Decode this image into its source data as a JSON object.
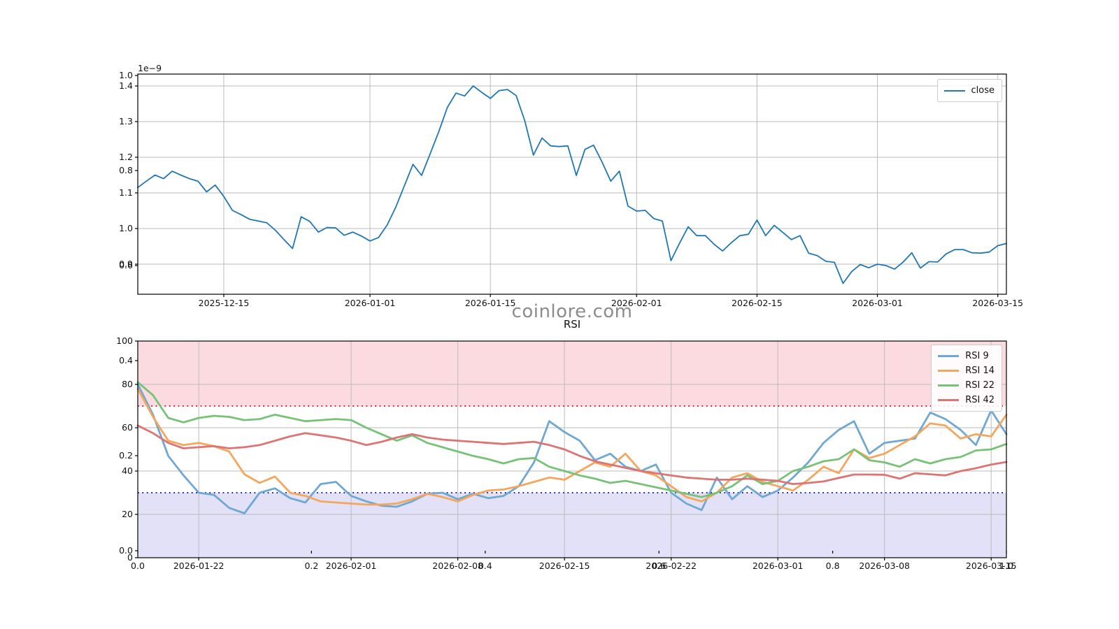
{
  "watermark": "coinlore.com",
  "colors": {
    "close": "#1f77b4",
    "rsi9": "#6fa8d2",
    "rsi14": "#f4a65c",
    "rsi22": "#77c277",
    "rsi42": "#dd7474",
    "overbought_band": "#fbdbe0",
    "oversold_band": "#e2e1f7",
    "overbought_line": "#dd0000",
    "oversold_line": "#0000cc",
    "grid": "#bbbbbb",
    "spine": "#000000"
  },
  "overlay_axis": {
    "note": "artifact figure-level axis 0-1 overlapping both charts",
    "yticks": [
      "1.0",
      "0.8",
      "0.6",
      "0.4",
      "0.2",
      "0.0"
    ],
    "xticks": [
      "0.0",
      "0.2",
      "0.4",
      "0.6",
      "0.8",
      "1.0"
    ]
  },
  "chart_data": [
    {
      "type": "line",
      "title": "",
      "x_start": "2025-12-05",
      "x_freq": "daily",
      "y_offset_label": "1e−9",
      "ylim_approx": [
        0.82,
        1.433
      ],
      "grid": true,
      "legend_position": "upper right",
      "yticks": [
        {
          "v": 1.4,
          "label": "1.4"
        },
        {
          "v": 1.3,
          "label": "1.3"
        },
        {
          "v": 1.2,
          "label": "1.2"
        },
        {
          "v": 1.1,
          "label": "1.1"
        },
        {
          "v": 1.0,
          "label": "1.0"
        },
        {
          "v": 0.9,
          "label": "0.9"
        }
      ],
      "xticks": [
        {
          "day": 10,
          "label": "2025-12-15"
        },
        {
          "day": 27,
          "label": "2026-01-01"
        },
        {
          "day": 41,
          "label": "2026-01-15"
        },
        {
          "day": 58,
          "label": "2026-02-01"
        },
        {
          "day": 72,
          "label": "2026-02-15"
        },
        {
          "day": 86,
          "label": "2026-03-01"
        },
        {
          "day": 100,
          "label": "2026-03-15"
        }
      ],
      "series": [
        {
          "name": "close",
          "color": "#1f77b4",
          "width": 1.8,
          "values": [
            1.115,
            1.133,
            1.15,
            1.14,
            1.161,
            1.15,
            1.14,
            1.133,
            1.103,
            1.122,
            1.09,
            1.051,
            1.039,
            1.026,
            1.021,
            1.016,
            0.995,
            0.969,
            0.944,
            1.033,
            1.02,
            0.99,
            1.003,
            1.002,
            0.981,
            0.99,
            0.979,
            0.965,
            0.975,
            1.01,
            1.06,
            1.12,
            1.18,
            1.149,
            1.21,
            1.272,
            1.34,
            1.38,
            1.372,
            1.4,
            1.382,
            1.365,
            1.387,
            1.39,
            1.373,
            1.302,
            1.206,
            1.254,
            1.232,
            1.23,
            1.232,
            1.149,
            1.222,
            1.234,
            1.186,
            1.133,
            1.161,
            1.063,
            1.049,
            1.051,
            1.028,
            1.021,
            0.91,
            0.959,
            1.005,
            0.98,
            0.98,
            0.956,
            0.937,
            0.96,
            0.98,
            0.984,
            1.024,
            0.98,
            1.009,
            0.989,
            0.969,
            0.98,
            0.931,
            0.924,
            0.908,
            0.905,
            0.846,
            0.879,
            0.899,
            0.89,
            0.9,
            0.896,
            0.886,
            0.906,
            0.932,
            0.889,
            0.907,
            0.906,
            0.929,
            0.941,
            0.941,
            0.932,
            0.931,
            0.934,
            0.952,
            0.958
          ]
        }
      ]
    },
    {
      "type": "line",
      "title": "RSI",
      "x_start": "2026-01-18",
      "x_freq": "daily",
      "ylim": [
        0,
        100
      ],
      "grid": true,
      "legend_position": "upper right",
      "hlines": [
        {
          "v": 70,
          "color": "#dd0000",
          "style": "dotted"
        },
        {
          "v": 30,
          "color": "#0000cc",
          "style": "dotted"
        }
      ],
      "bands": [
        {
          "from": 70,
          "to": 100,
          "color": "#fbdbe0"
        },
        {
          "from": 0,
          "to": 30,
          "color": "#e2e1f7"
        }
      ],
      "yticks": [
        {
          "v": 100,
          "label": "100"
        },
        {
          "v": 80,
          "label": "80"
        },
        {
          "v": 60,
          "label": "60"
        },
        {
          "v": 40,
          "label": "40"
        },
        {
          "v": 20,
          "label": "20"
        },
        {
          "v": 0,
          "label": "0"
        }
      ],
      "xticks": [
        {
          "day": 4,
          "label": "2026-01-22"
        },
        {
          "day": 14,
          "label": "2026-02-01"
        },
        {
          "day": 21,
          "label": "2026-02-08"
        },
        {
          "day": 28,
          "label": "2026-02-15"
        },
        {
          "day": 35,
          "label": "2026-02-22"
        },
        {
          "day": 42,
          "label": "2026-03-01"
        },
        {
          "day": 49,
          "label": "2026-03-08"
        },
        {
          "day": 56,
          "label": "2026-03-15"
        }
      ],
      "series": [
        {
          "name": "RSI 9",
          "color": "#6fa8d2",
          "width": 2.8,
          "values": [
            80,
            66,
            47,
            38,
            30,
            29,
            23,
            20.5,
            30,
            32,
            27.5,
            25.5,
            34,
            35,
            28.5,
            26,
            24,
            23.5,
            26,
            29.5,
            30,
            27,
            29.5,
            27.5,
            28.5,
            33,
            44,
            63,
            58,
            54,
            45,
            48,
            42,
            40,
            43,
            30,
            25,
            22,
            37,
            27,
            33,
            28,
            31,
            37,
            44,
            53,
            59,
            63,
            48,
            53,
            54,
            55,
            67,
            64,
            59,
            52,
            68,
            57
          ]
        },
        {
          "name": "RSI 14",
          "color": "#f4a65c",
          "width": 2.8,
          "values": [
            78,
            65,
            54,
            52,
            53,
            51.5,
            49,
            38.5,
            34.5,
            37.5,
            30,
            28.5,
            26,
            25.5,
            25,
            24.5,
            24.5,
            25,
            27,
            29.5,
            28,
            26,
            29,
            31,
            31.5,
            33,
            35,
            37,
            36,
            40,
            44,
            42,
            48,
            40,
            38,
            33,
            28,
            26,
            30,
            37,
            39,
            35,
            33,
            31,
            36,
            42,
            39,
            50,
            46,
            48,
            52,
            56,
            62,
            61,
            55,
            57,
            56,
            66
          ]
        },
        {
          "name": "RSI 22",
          "color": "#77c277",
          "width": 2.8,
          "values": [
            81,
            75,
            64.5,
            62.5,
            64.5,
            65.5,
            65,
            63.5,
            64,
            66,
            64.5,
            63,
            63.5,
            64,
            63.5,
            60,
            57,
            54,
            56.5,
            53,
            51,
            49,
            47,
            45.5,
            43.5,
            45.5,
            46,
            42,
            40,
            38,
            36.5,
            34.5,
            35.5,
            34,
            32.5,
            31,
            29.5,
            28,
            30,
            33,
            38,
            34,
            35.5,
            40,
            42,
            44.5,
            45.5,
            50,
            45,
            44,
            42,
            45.5,
            43.5,
            45.5,
            46.5,
            49.5,
            50,
            52.5
          ]
        },
        {
          "name": "RSI 42",
          "color": "#dd7474",
          "width": 2.8,
          "values": [
            61,
            57.5,
            53,
            50.5,
            51,
            51.5,
            50.5,
            51,
            52,
            54,
            56,
            57.5,
            56.5,
            55.5,
            54,
            52,
            53.5,
            55.5,
            57,
            55.5,
            54.5,
            54,
            53.5,
            53,
            52.5,
            53,
            53.5,
            52,
            50,
            47,
            44.5,
            43,
            41.5,
            40,
            39,
            38,
            37,
            36.5,
            36,
            36,
            36.5,
            36,
            35.5,
            34,
            34.5,
            35.2,
            36.8,
            38.4,
            38.4,
            38.3,
            36.5,
            39,
            38.5,
            38,
            40,
            41.3,
            43,
            44.2
          ]
        }
      ]
    }
  ]
}
